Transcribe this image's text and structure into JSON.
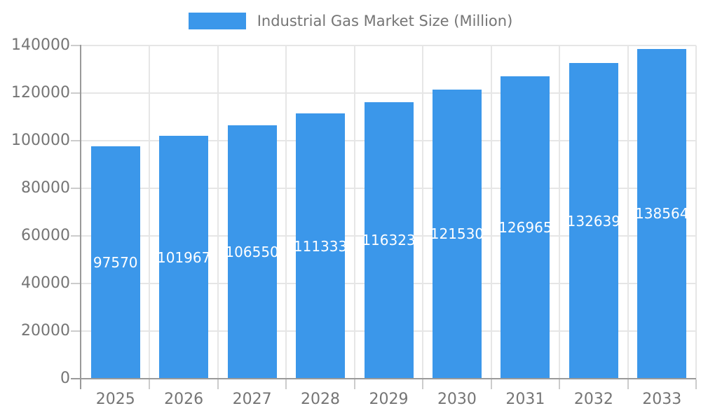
{
  "legend": {
    "label": "Industrial Gas Market Size (Million)"
  },
  "chart_data": {
    "type": "bar",
    "title": "Industrial Gas Market Size (Million)",
    "categories": [
      "2025",
      "2026",
      "2027",
      "2028",
      "2029",
      "2030",
      "2031",
      "2032",
      "2033"
    ],
    "values": [
      97570,
      101967,
      106550,
      111333,
      116323,
      121530,
      126965,
      132639,
      138564
    ],
    "value_labels": [
      "97570",
      "101967",
      "106550",
      "111333",
      "116323",
      "121530",
      "126965",
      "132639",
      "138564"
    ],
    "xlabel": "",
    "ylabel": "",
    "ylim": [
      0,
      140000
    ],
    "y_ticks": [
      0,
      20000,
      40000,
      60000,
      80000,
      100000,
      120000,
      140000
    ],
    "y_tick_labels": [
      "0",
      "20000",
      "40000",
      "60000",
      "80000",
      "100000",
      "120000",
      "140000"
    ],
    "grid": true,
    "legend_position": "top",
    "colors": {
      "bar": "#3b97ea",
      "value_label": "#ffffff",
      "axis_text": "#757575",
      "gridline": "#e6e6e6",
      "axis_line": "#9a9a9a",
      "tick_mark": "#cccccc"
    }
  }
}
